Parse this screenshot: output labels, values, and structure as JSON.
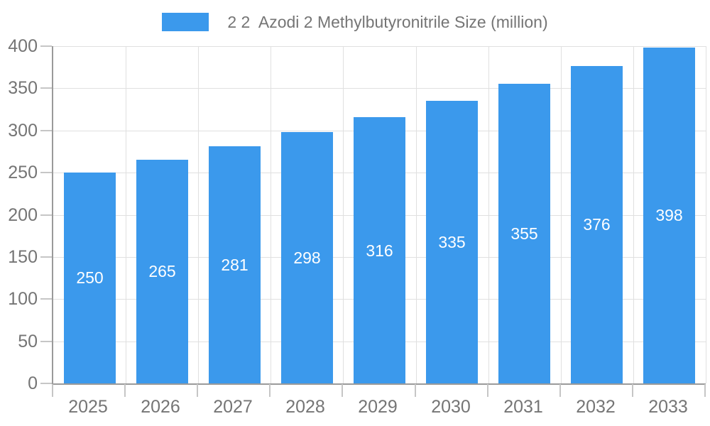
{
  "legend": {
    "label": "2 2  Azodi 2 Methylbutyronitrile Size (million)",
    "swatch_color": "#3b99ec"
  },
  "chart_data": {
    "type": "bar",
    "title": "2 2  Azodi 2 Methylbutyronitrile Size (million)",
    "categories": [
      "2025",
      "2026",
      "2027",
      "2028",
      "2029",
      "2030",
      "2031",
      "2032",
      "2033"
    ],
    "values": [
      250,
      265,
      281,
      298,
      316,
      335,
      355,
      376,
      398
    ],
    "xlabel": "",
    "ylabel": "",
    "ylim": [
      0,
      400
    ],
    "ytick_step": 50,
    "grid": true,
    "legend_position": "top",
    "colors": {
      "bar": "#3b99ec",
      "bar_label": "#ffffff",
      "axis_line": "#9a9a9a",
      "gridline": "#e0e0e0",
      "tick": "#c6c6c6",
      "axis_text": "#757575"
    }
  }
}
